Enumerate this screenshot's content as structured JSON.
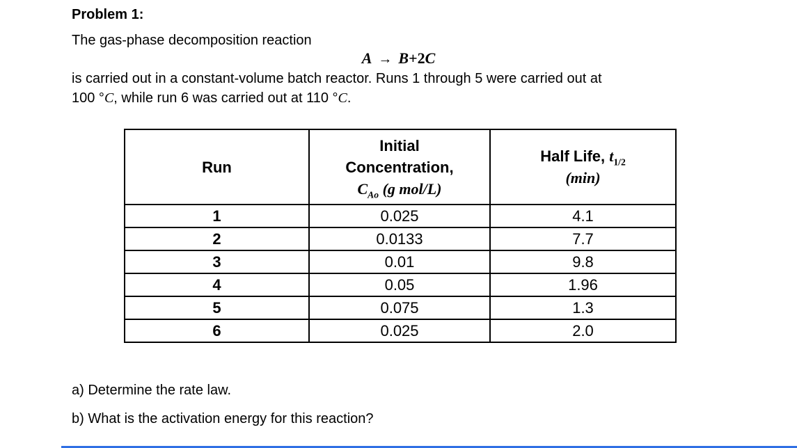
{
  "page": {
    "background": "#ffffff",
    "text_color": "#000000",
    "bottom_bar_color": "#2f6fe4"
  },
  "problem": {
    "heading": "Problem 1:",
    "intro_line": "The gas-phase decomposition reaction",
    "equation": {
      "reactant": "A",
      "arrow": "→",
      "product_b": "B",
      "plus_coeff": "+2",
      "product_c": "C"
    },
    "body_line1": "is carried out in a constant-volume batch reactor. Runs 1 through 5 were carried out at",
    "body_line2": {
      "t1": "100 °",
      "c1": "C",
      "t2": ", while run 6 was carried out at 110 °",
      "c2": "C",
      "t3": "."
    }
  },
  "table": {
    "headers": {
      "run": "Run",
      "conc_line1": "Initial",
      "conc_line2": "Concentration,",
      "conc_symbol": "C",
      "conc_sub": "Ao",
      "conc_units": " (g mol/L)",
      "half_label": "Half Life, ",
      "half_symbol": "t",
      "half_sub": "1/2",
      "half_units": "(min)"
    },
    "rows": [
      {
        "run": "1",
        "conc": "0.025",
        "half_life": "4.1"
      },
      {
        "run": "2",
        "conc": "0.0133",
        "half_life": "7.7"
      },
      {
        "run": "3",
        "conc": "0.01",
        "half_life": "9.8"
      },
      {
        "run": "4",
        "conc": "0.05",
        "half_life": "1.96"
      },
      {
        "run": "5",
        "conc": "0.075",
        "half_life": "1.3"
      },
      {
        "run": "6",
        "conc": "0.025",
        "half_life": "2.0"
      }
    ]
  },
  "questions": {
    "a": "a) Determine the rate law.",
    "b": "b) What is the activation energy for this reaction?"
  }
}
